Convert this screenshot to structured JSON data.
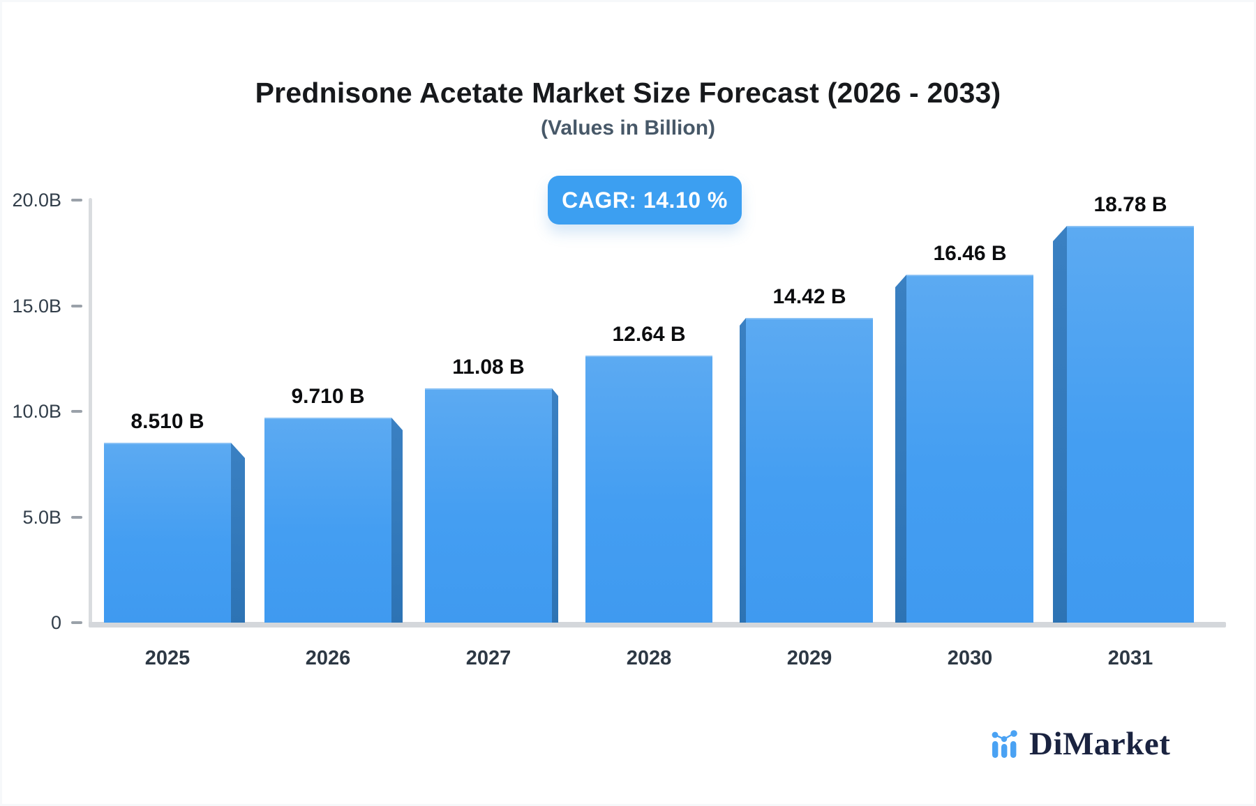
{
  "header": {
    "title": "Prednisone Acetate Market Size Forecast (2026 - 2033)",
    "subtitle": "(Values in Billion)",
    "cagr_badge": "CAGR: 14.10 %",
    "badge_color": "#3c9ff1"
  },
  "brand": {
    "name": "DiMarket",
    "icon": "bar-chart-logo-icon",
    "text_color": "#1a2340",
    "icon_color": "#4aa2f3"
  },
  "chart_data": {
    "type": "bar",
    "title": "Prednisone Acetate Market Size Forecast (2026 - 2033)",
    "subtitle": "(Values in Billion)",
    "xlabel": "",
    "ylabel": "",
    "categories": [
      "2025",
      "2026",
      "2027",
      "2028",
      "2029",
      "2030",
      "2031"
    ],
    "values": [
      8.51,
      9.71,
      11.08,
      12.64,
      14.42,
      16.46,
      18.78
    ],
    "value_labels": [
      "8.510 B",
      "9.710 B",
      "11.08 B",
      "12.64 B",
      "14.42 B",
      "16.46 B",
      "18.78 B"
    ],
    "y_ticks": [
      {
        "label": "20.0B",
        "value": 20
      },
      {
        "label": "15.0B",
        "value": 15
      },
      {
        "label": "10.0B",
        "value": 10
      },
      {
        "label": "5.0B",
        "value": 5
      },
      {
        "label": "0",
        "value": 0
      }
    ],
    "ylim": [
      0,
      20
    ],
    "grid": false,
    "legend": false,
    "bar_color_top": "#5caaf2",
    "bar_color_bottom": "#3f9af0",
    "bar_side_color": "#2f78ba",
    "axis_color": "#d4d7db",
    "style": "3d-extruded-bars, perspective vanishing toward center bar"
  }
}
